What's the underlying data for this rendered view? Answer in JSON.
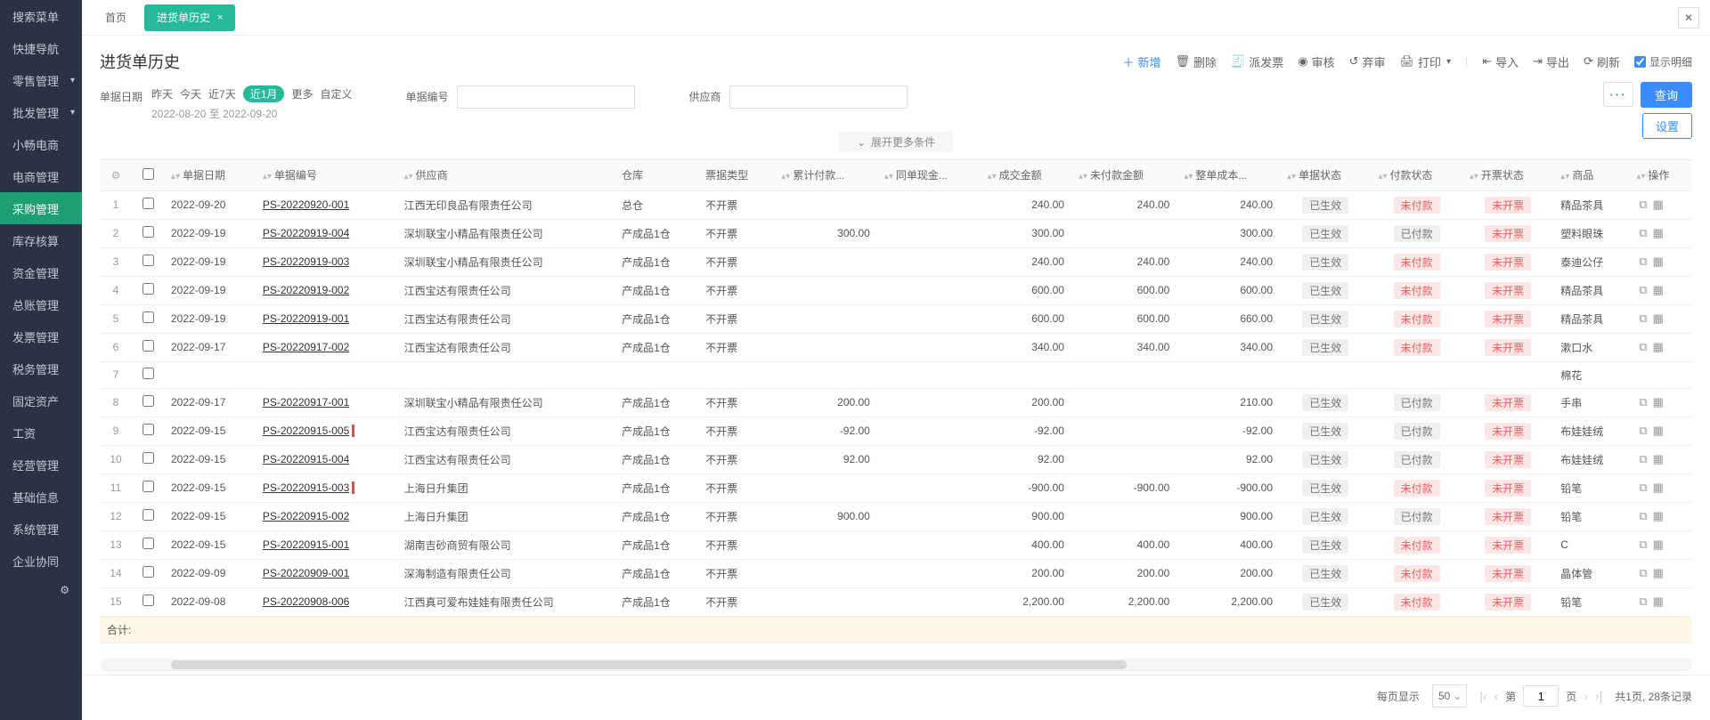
{
  "sidebar": {
    "items": [
      {
        "label": "搜索菜单",
        "chev": false
      },
      {
        "label": "快捷导航",
        "chev": false
      },
      {
        "label": "零售管理",
        "chev": true
      },
      {
        "label": "批发管理",
        "chev": true
      },
      {
        "label": "小畅电商",
        "chev": false
      },
      {
        "label": "电商管理",
        "chev": false
      },
      {
        "label": "采购管理",
        "chev": false,
        "active": true
      },
      {
        "label": "库存核算",
        "chev": false
      },
      {
        "label": "资金管理",
        "chev": false
      },
      {
        "label": "总账管理",
        "chev": false
      },
      {
        "label": "发票管理",
        "chev": false
      },
      {
        "label": "税务管理",
        "chev": false
      },
      {
        "label": "固定资产",
        "chev": false
      },
      {
        "label": "工资",
        "chev": false
      },
      {
        "label": "经营管理",
        "chev": false
      },
      {
        "label": "基础信息",
        "chev": false
      },
      {
        "label": "系统管理",
        "chev": false
      },
      {
        "label": "企业协同",
        "chev": false
      }
    ]
  },
  "tabs": {
    "home": "首页",
    "active": "进货单历史"
  },
  "page_title": "进货单历史",
  "toolbar": {
    "add": "新增",
    "delete": "删除",
    "invoice": "派发票",
    "audit": "审核",
    "discard": "弃审",
    "print": "打印",
    "import": "导入",
    "export": "导出",
    "refresh": "刷新",
    "show_detail": "显示明细"
  },
  "filter": {
    "date_label": "单据日期",
    "quick": [
      "昨天",
      "今天",
      "近7天",
      "近1月",
      "更多",
      "自定义"
    ],
    "quick_active": "近1月",
    "date_range": "2022-08-20 至 2022-09-20",
    "doc_label": "单据编号",
    "supplier_label": "供应商",
    "search_btn": "查询",
    "settings_btn": "设置",
    "expand": "展开更多条件"
  },
  "columns": [
    "",
    "",
    "单据日期",
    "单据编号",
    "供应商",
    "仓库",
    "票据类型",
    "累计付款...",
    "同单现金...",
    "成交金额",
    "未付款金额",
    "整单成本...",
    "单据状态",
    "付款状态",
    "开票状态",
    "商品",
    "操作"
  ],
  "rows": [
    {
      "n": 1,
      "date": "2022-09-20",
      "doc": "PS-20220920-001",
      "supplier": "江西无印良品有限责任公司",
      "wh": "总仓",
      "bill": "不开票",
      "paid": "",
      "cash": "",
      "amount": "240.00",
      "unpaid": "240.00",
      "cost": "240.00",
      "ds": "已生效",
      "ps": "未付款",
      "is": "未开票",
      "goods": "精品茶具"
    },
    {
      "n": 2,
      "date": "2022-09-19",
      "doc": "PS-20220919-004",
      "supplier": "深圳联宝小精品有限责任公司",
      "wh": "产成品1仓",
      "bill": "不开票",
      "paid": "300.00",
      "cash": "",
      "amount": "300.00",
      "unpaid": "",
      "cost": "300.00",
      "ds": "已生效",
      "ps": "已付款",
      "is": "未开票",
      "goods": "塑料眼珠"
    },
    {
      "n": 3,
      "date": "2022-09-19",
      "doc": "PS-20220919-003",
      "supplier": "深圳联宝小精品有限责任公司",
      "wh": "产成品1仓",
      "bill": "不开票",
      "paid": "",
      "cash": "",
      "amount": "240.00",
      "unpaid": "240.00",
      "cost": "240.00",
      "ds": "已生效",
      "ps": "未付款",
      "is": "未开票",
      "goods": "泰迪公仔"
    },
    {
      "n": 4,
      "date": "2022-09-19",
      "doc": "PS-20220919-002",
      "supplier": "江西宝达有限责任公司",
      "wh": "产成品1仓",
      "bill": "不开票",
      "paid": "",
      "cash": "",
      "amount": "600.00",
      "unpaid": "600.00",
      "cost": "600.00",
      "ds": "已生效",
      "ps": "未付款",
      "is": "未开票",
      "goods": "精品茶具"
    },
    {
      "n": 5,
      "date": "2022-09-19",
      "doc": "PS-20220919-001",
      "supplier": "江西宝达有限责任公司",
      "wh": "产成品1仓",
      "bill": "不开票",
      "paid": "",
      "cash": "",
      "amount": "600.00",
      "unpaid": "600.00",
      "cost": "660.00",
      "ds": "已生效",
      "ps": "未付款",
      "is": "未开票",
      "goods": "精品茶具"
    },
    {
      "n": 6,
      "date": "2022-09-17",
      "doc": "PS-20220917-002",
      "supplier": "江西宝达有限责任公司",
      "wh": "产成品1仓",
      "bill": "不开票",
      "paid": "",
      "cash": "",
      "amount": "340.00",
      "unpaid": "340.00",
      "cost": "340.00",
      "ds": "已生效",
      "ps": "未付款",
      "is": "未开票",
      "goods": "漱口水"
    },
    {
      "n": 7,
      "date": "",
      "doc": "",
      "supplier": "",
      "wh": "",
      "bill": "",
      "paid": "",
      "cash": "",
      "amount": "",
      "unpaid": "",
      "cost": "",
      "ds": "",
      "ps": "",
      "is": "",
      "goods": "棉花"
    },
    {
      "n": 8,
      "date": "2022-09-17",
      "doc": "PS-20220917-001",
      "supplier": "深圳联宝小精品有限责任公司",
      "wh": "产成品1仓",
      "bill": "不开票",
      "paid": "200.00",
      "cash": "",
      "amount": "200.00",
      "unpaid": "",
      "cost": "210.00",
      "ds": "已生效",
      "ps": "已付款",
      "is": "未开票",
      "goods": "手串"
    },
    {
      "n": 9,
      "date": "2022-09-15",
      "doc": "PS-20220915-005",
      "supplier": "江西宝达有限责任公司",
      "wh": "产成品1仓",
      "bill": "不开票",
      "paid": "-92.00",
      "cash": "",
      "amount": "-92.00",
      "unpaid": "",
      "cost": "-92.00",
      "ds": "已生效",
      "ps": "已付款",
      "is": "未开票",
      "goods": "布娃娃绒",
      "flag": true
    },
    {
      "n": 10,
      "date": "2022-09-15",
      "doc": "PS-20220915-004",
      "supplier": "江西宝达有限责任公司",
      "wh": "产成品1仓",
      "bill": "不开票",
      "paid": "92.00",
      "cash": "",
      "amount": "92.00",
      "unpaid": "",
      "cost": "92.00",
      "ds": "已生效",
      "ps": "已付款",
      "is": "未开票",
      "goods": "布娃娃绒"
    },
    {
      "n": 11,
      "date": "2022-09-15",
      "doc": "PS-20220915-003",
      "supplier": "上海日升集团",
      "wh": "产成品1仓",
      "bill": "不开票",
      "paid": "",
      "cash": "",
      "amount": "-900.00",
      "unpaid": "-900.00",
      "cost": "-900.00",
      "ds": "已生效",
      "ps": "未付款",
      "is": "未开票",
      "goods": "铅笔",
      "flag": true
    },
    {
      "n": 12,
      "date": "2022-09-15",
      "doc": "PS-20220915-002",
      "supplier": "上海日升集团",
      "wh": "产成品1仓",
      "bill": "不开票",
      "paid": "900.00",
      "cash": "",
      "amount": "900.00",
      "unpaid": "",
      "cost": "900.00",
      "ds": "已生效",
      "ps": "已付款",
      "is": "未开票",
      "goods": "铅笔"
    },
    {
      "n": 13,
      "date": "2022-09-15",
      "doc": "PS-20220915-001",
      "supplier": "湖南吉砂商贸有限公司",
      "wh": "产成品1仓",
      "bill": "不开票",
      "paid": "",
      "cash": "",
      "amount": "400.00",
      "unpaid": "400.00",
      "cost": "400.00",
      "ds": "已生效",
      "ps": "未付款",
      "is": "未开票",
      "goods": "C"
    },
    {
      "n": 14,
      "date": "2022-09-09",
      "doc": "PS-20220909-001",
      "supplier": "深海制造有限责任公司",
      "wh": "产成品1仓",
      "bill": "不开票",
      "paid": "",
      "cash": "",
      "amount": "200.00",
      "unpaid": "200.00",
      "cost": "200.00",
      "ds": "已生效",
      "ps": "未付款",
      "is": "未开票",
      "goods": "晶体管"
    },
    {
      "n": 15,
      "date": "2022-09-08",
      "doc": "PS-20220908-006",
      "supplier": "江西真可爱布娃娃有限责任公司",
      "wh": "产成品1仓",
      "bill": "不开票",
      "paid": "",
      "cash": "",
      "amount": "2,200.00",
      "unpaid": "2,200.00",
      "cost": "2,200.00",
      "ds": "已生效",
      "ps": "未付款",
      "is": "未开票",
      "goods": "铅笔"
    }
  ],
  "footer_label": "合计:",
  "pagination": {
    "per_page_label": "每页显示",
    "per_page": "50",
    "page_label_before": "第",
    "page": "1",
    "page_label_after": "页",
    "summary": "共1页, 28条记录"
  },
  "colors": {
    "sidebar_bg": "#2c3246",
    "sidebar_active": "#1d9e74",
    "tab_active": "#26b99a",
    "primary": "#3b8cff",
    "badge_gray_bg": "#eef0f2",
    "badge_red_bg": "#fde6e6",
    "badge_red_fg": "#e86161"
  }
}
